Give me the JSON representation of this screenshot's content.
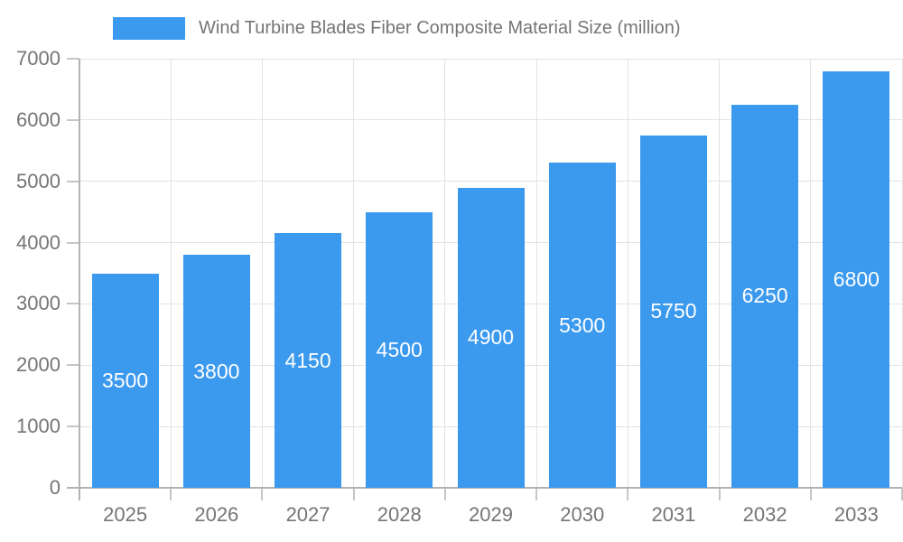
{
  "chart_data": {
    "type": "bar",
    "title": "Wind Turbine Blades Fiber Composite Material Size (million)",
    "categories": [
      "2025",
      "2026",
      "2027",
      "2028",
      "2029",
      "2030",
      "2031",
      "2032",
      "2033"
    ],
    "values": [
      3500,
      3800,
      4150,
      4500,
      4900,
      5300,
      5750,
      6250,
      6800
    ],
    "xlabel": "",
    "ylabel": "",
    "ylim": [
      0,
      7000
    ],
    "y_ticks": [
      0,
      1000,
      2000,
      3000,
      4000,
      5000,
      6000,
      7000
    ],
    "grid": "on",
    "legend_position": "top",
    "value_labels": [
      "3500",
      "3800",
      "4150",
      "4500",
      "4900",
      "5300",
      "5750",
      "6250",
      "6800"
    ],
    "colors": {
      "bar": "#3b99ee",
      "value_label": "#ffffff",
      "axis_text": "#757575",
      "legend_text": "#757575",
      "gridline": "#e3e3e3",
      "axis_line": "#b3b3b3",
      "background": "#ffffff"
    }
  }
}
